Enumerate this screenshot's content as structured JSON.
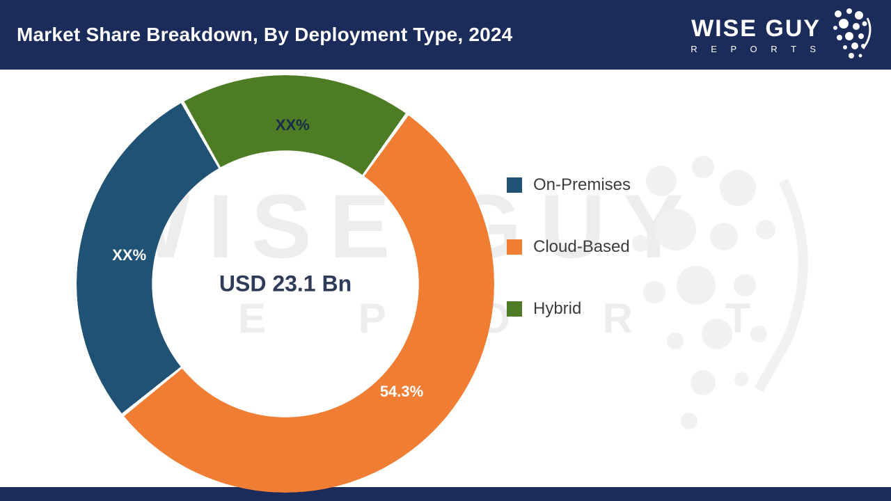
{
  "header": {
    "title": "Market Share Breakdown, By Deployment Type, 2024",
    "logo_line1": "WISE GUY",
    "logo_line2": "R E P O R T S"
  },
  "watermark": {
    "line1": "WISE GUY",
    "line2": "R E P O R T S"
  },
  "chart_data": {
    "type": "pie",
    "subtype": "donut",
    "title": "Market Share Breakdown, By Deployment Type, 2024",
    "center_label": "USD 23.1 Bn",
    "legend_position": "right",
    "rotation_deg": 330,
    "gap_deg": 1,
    "hole_ratio": 0.64,
    "label_radius_ratio": 0.76,
    "draw_order": [
      2,
      1,
      0
    ],
    "segments": [
      {
        "name": "On-Premises",
        "label": "XX%",
        "value": 27.6,
        "color": "#1f5274",
        "label_color": "#ffffff"
      },
      {
        "name": "Cloud-Based",
        "label": "54.3%",
        "value": 54.3,
        "color": "#ef7d33",
        "label_color": "#ffffff"
      },
      {
        "name": "Hybrid",
        "label": "XX%",
        "value": 18.1,
        "color": "#4e7c25",
        "label_color": "#1b2b4a"
      }
    ]
  },
  "colors": {
    "header_bar": "#1b2b5a",
    "footer_bar": "#1b2b5a",
    "center_text": "#2e3c59",
    "legend_text": "#3d3d3d"
  }
}
